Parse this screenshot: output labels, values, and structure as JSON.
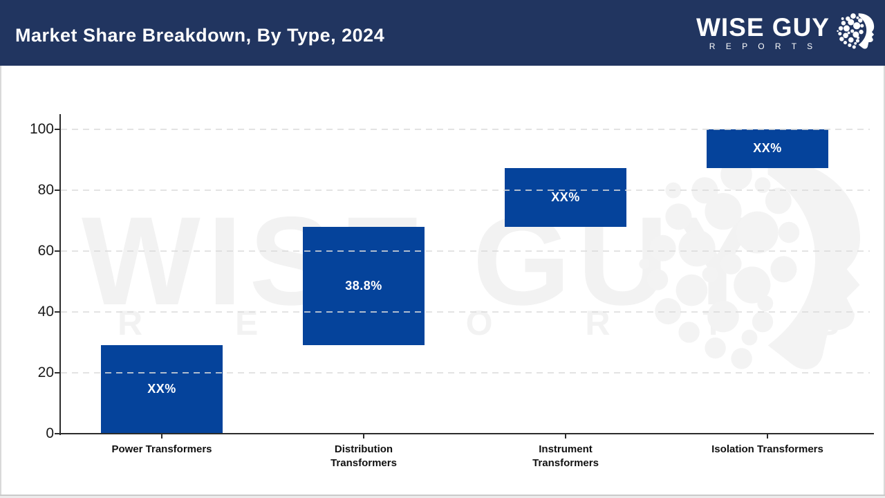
{
  "header": {
    "title": "Market Share Breakdown, By Type, 2024",
    "background_color": "#213560",
    "brand": {
      "line1": "WISE GUY",
      "line2": "R E P O R T S"
    }
  },
  "watermark": {
    "line1": "WISE GUY",
    "line2": "R E P O R T S"
  },
  "chart_data": {
    "type": "bar",
    "subtype": "waterfall",
    "title": "Market Share Breakdown, By Type, 2024",
    "categories": [
      "Power Transformers",
      "Distribution Transformers",
      "Instrument Transformers",
      "Isolation Transformers"
    ],
    "segments": [
      {
        "category": "Power Transformers",
        "start": 0,
        "end": 29.1,
        "label": "XX%"
      },
      {
        "category": "Distribution Transformers",
        "start": 29.1,
        "end": 67.9,
        "label": "38.8%"
      },
      {
        "category": "Instrument Transformers",
        "start": 67.9,
        "end": 87.3,
        "label": "XX%"
      },
      {
        "category": "Isolation Transformers",
        "start": 87.3,
        "end": 100,
        "label": "XX%"
      }
    ],
    "yticks": [
      0,
      20,
      40,
      60,
      80,
      100
    ],
    "ylim": [
      0,
      105
    ],
    "xlabel": "",
    "ylabel": "",
    "grid": "horizontal-dashed",
    "legend_position": "none",
    "bar_color": "#05439b",
    "bar_label_color": "#ffffff",
    "axis_color": "#2b2b2b"
  }
}
